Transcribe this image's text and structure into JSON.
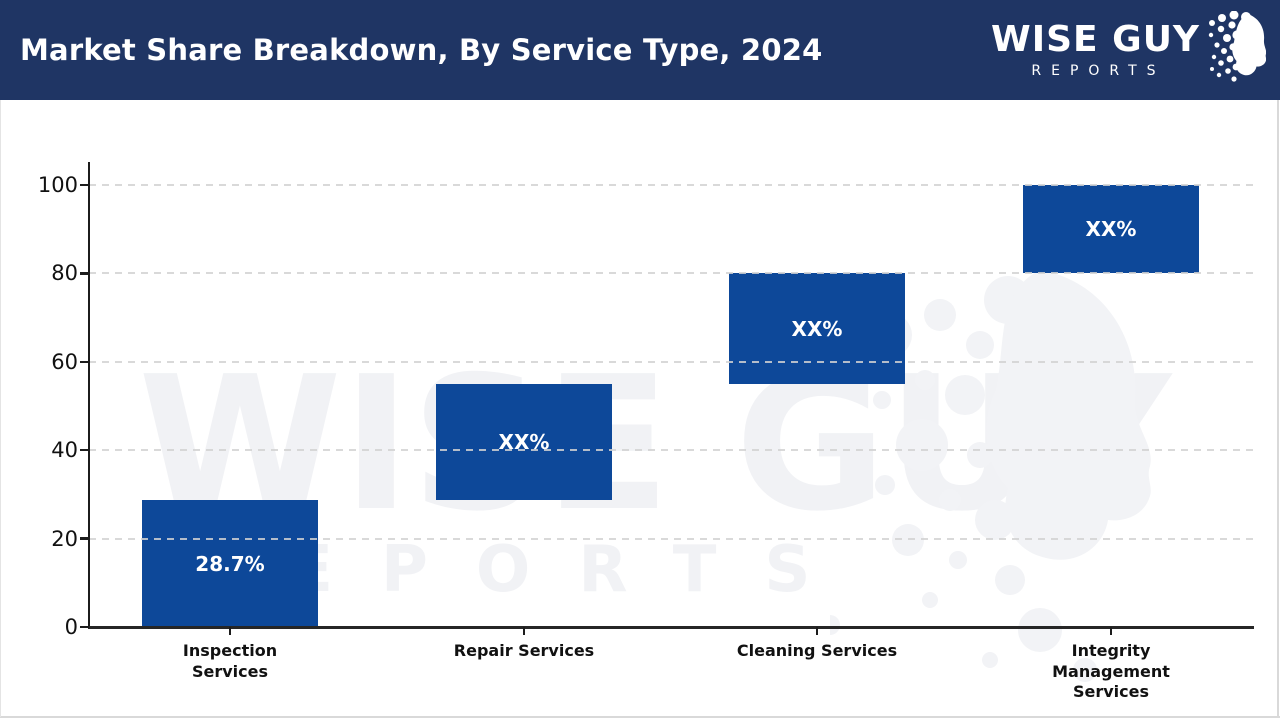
{
  "header": {
    "title": "Market Share Breakdown, By Service Type, 2024",
    "logo": {
      "line1": "WISE GUY",
      "line2": "REPORTS"
    }
  },
  "watermark": {
    "line1": "WISE GUY",
    "line2": "REPORTS"
  },
  "chart_data": {
    "type": "bar",
    "waterfall": true,
    "title": "Market Share Breakdown, By Service Type, 2024",
    "categories": [
      "Inspection\nServices",
      "Repair Services",
      "Cleaning Services",
      "Integrity\nManagement\nServices"
    ],
    "segments": [
      {
        "category": "Inspection Services",
        "start": 0,
        "end": 28.7,
        "label": "28.7%"
      },
      {
        "category": "Repair Services",
        "start": 28.7,
        "end": 55,
        "label": "XX%"
      },
      {
        "category": "Cleaning Services",
        "start": 55,
        "end": 80,
        "label": "XX%"
      },
      {
        "category": "Integrity Management Services",
        "start": 80,
        "end": 100,
        "label": "XX%"
      }
    ],
    "ylim": [
      0,
      100
    ],
    "yticks": [
      0,
      20,
      40,
      60,
      80,
      100
    ],
    "xlabel": "",
    "ylabel": "",
    "grid": "horizontal dashed, drawn over bars",
    "legend": "none",
    "bar_color": "#0d4899",
    "bar_label_color": "#ffffff",
    "header_color": "#1f3564",
    "gridline_color": "#d2d2d2",
    "axis_color": "#1c1c1c"
  }
}
